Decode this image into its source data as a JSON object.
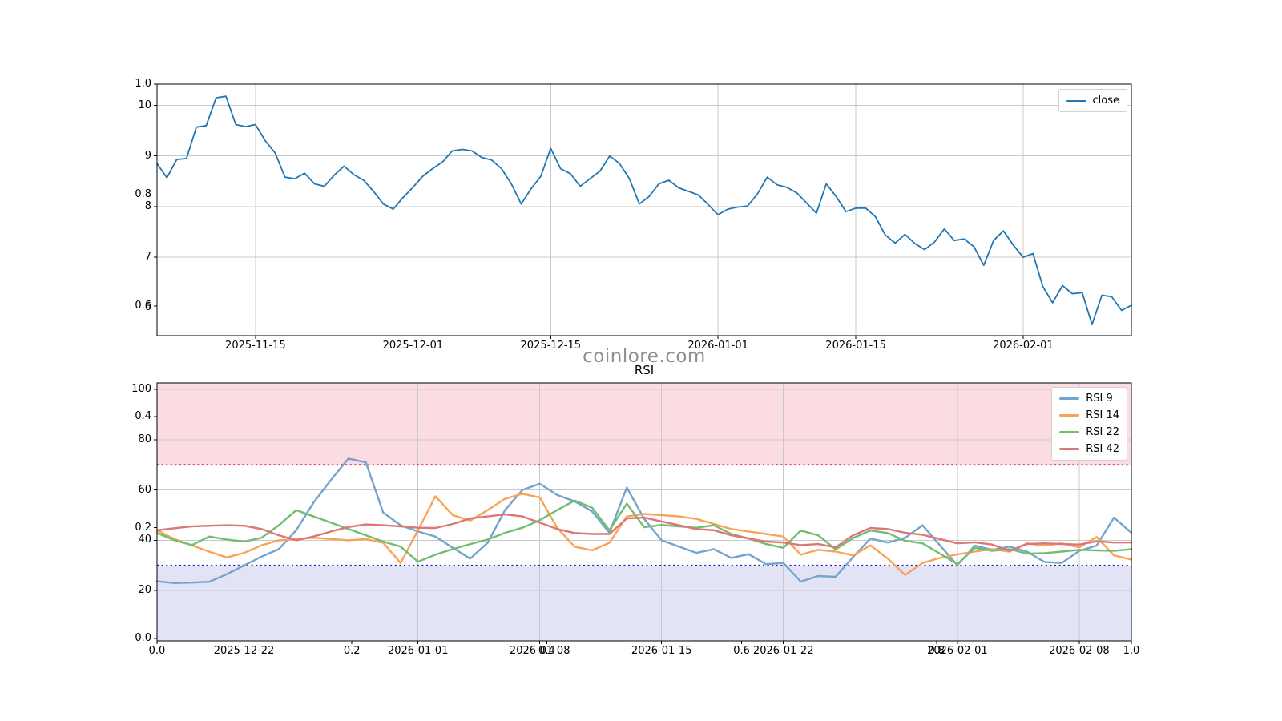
{
  "watermark": {
    "text": "coinlore.com"
  },
  "colors": {
    "grid": "#c9c9c9",
    "spine": "#000000",
    "close_line": "#1f77b4",
    "rsi9_line": "#74a4cd",
    "rsi14_line": "#f9a357",
    "rsi22_line": "#72bd72",
    "rsi42_line": "#dc7678",
    "overbought_band": "#fbdce2",
    "oversold_band": "#e3e3f6",
    "overbought_dotted": "#c81e3c",
    "oversold_dotted": "#1515b5",
    "watermark_text": "#8f8f8f"
  },
  "overlay_axis": {
    "y_labels": [
      "1.0",
      "0.8",
      "0.6",
      "0.4",
      "0.2",
      "0.0"
    ],
    "x_labels": [
      "0.0",
      "0.2",
      "0.4",
      "0.6",
      "0.8",
      "1.0"
    ]
  },
  "chart_data": [
    {
      "type": "line",
      "name": "price-panel",
      "title": "",
      "x_start_date": "2025-11-05",
      "x_end_date": "2026-02-12",
      "x_freq": "daily",
      "ylim": [
        5.45,
        10.42
      ],
      "grid": true,
      "legend_position": "upper right",
      "yticks": [
        {
          "label": "10",
          "value": 10
        },
        {
          "label": "9",
          "value": 9
        },
        {
          "label": "8",
          "value": 8
        },
        {
          "label": "7",
          "value": 7
        },
        {
          "label": "6",
          "value": 6
        }
      ],
      "xticks": [
        {
          "label": "2025-11-15",
          "index": 10
        },
        {
          "label": "2025-12-01",
          "index": 26
        },
        {
          "label": "2025-12-15",
          "index": 40
        },
        {
          "label": "2026-01-01",
          "index": 57
        },
        {
          "label": "2026-01-15",
          "index": 71
        },
        {
          "label": "2026-02-01",
          "index": 88
        }
      ],
      "series": [
        {
          "name": "close",
          "color": "#1f77b4",
          "width": 1.8,
          "values": [
            8.85,
            8.57,
            8.93,
            8.95,
            9.57,
            9.6,
            10.15,
            10.18,
            9.62,
            9.58,
            9.62,
            9.3,
            9.06,
            8.58,
            8.55,
            8.66,
            8.45,
            8.4,
            8.62,
            8.8,
            8.63,
            8.52,
            8.3,
            8.05,
            7.95,
            8.18,
            8.38,
            8.6,
            8.75,
            8.88,
            9.1,
            9.13,
            9.1,
            8.97,
            8.92,
            8.75,
            8.45,
            8.05,
            8.35,
            8.6,
            9.15,
            8.75,
            8.65,
            8.4,
            8.55,
            8.7,
            9.0,
            8.85,
            8.55,
            8.05,
            8.2,
            8.45,
            8.52,
            8.37,
            8.3,
            8.23,
            8.04,
            7.84,
            7.95,
            7.99,
            8.01,
            8.25,
            8.58,
            8.43,
            8.38,
            8.27,
            8.07,
            7.87,
            8.45,
            8.2,
            7.9,
            7.97,
            7.97,
            7.8,
            7.44,
            7.28,
            7.45,
            7.27,
            7.15,
            7.3,
            7.56,
            7.33,
            7.36,
            7.21,
            6.84,
            7.33,
            7.52,
            7.24,
            7.0,
            7.07,
            6.42,
            6.1,
            6.44,
            6.28,
            6.3,
            5.67,
            6.25,
            6.22,
            5.95,
            6.05
          ]
        }
      ]
    },
    {
      "type": "line",
      "name": "rsi-panel",
      "title": "RSI",
      "x_start_date": "2025-12-17",
      "x_end_date": "2026-02-11",
      "x_freq": "daily",
      "ylim": [
        0,
        100
      ],
      "grid": true,
      "legend_position": "upper right",
      "yticks": [
        {
          "label": "100",
          "value": 100
        },
        {
          "label": "80",
          "value": 80
        },
        {
          "label": "60",
          "value": 60
        },
        {
          "label": "40",
          "value": 40
        },
        {
          "label": "20",
          "value": 20
        }
      ],
      "xticks": [
        {
          "label": "2025-12-22",
          "index": 5
        },
        {
          "label": "2026-01-01",
          "index": 15
        },
        {
          "label": "2026-01-08",
          "index": 22
        },
        {
          "label": "2026-01-15",
          "index": 29
        },
        {
          "label": "2026-01-22",
          "index": 36
        },
        {
          "label": "2026-02-01",
          "index": 46
        },
        {
          "label": "2026-02-08",
          "index": 53
        }
      ],
      "bands": [
        {
          "from": 70,
          "to": 100,
          "color": "#fbdce2"
        },
        {
          "from": 0,
          "to": 30,
          "color": "#e3e3f6"
        }
      ],
      "hlines": [
        {
          "value": 70,
          "color": "#c81e3c",
          "style": "dotted"
        },
        {
          "value": 30,
          "color": "#1515b5",
          "style": "dotted"
        }
      ],
      "series": [
        {
          "name": "RSI 9",
          "color": "#74a4cd",
          "width": 2.4,
          "values": [
            23.7,
            23.0,
            23.2,
            23.5,
            26.5,
            30.0,
            33.5,
            36.5,
            44.0,
            55.0,
            64.0,
            72.5,
            71.0,
            51.0,
            46.0,
            43.5,
            41.5,
            37.0,
            32.7,
            39.0,
            52.0,
            60.0,
            62.5,
            58.0,
            55.5,
            51.5,
            43.0,
            61.0,
            48.5,
            40.0,
            37.5,
            35.0,
            36.5,
            33.0,
            34.5,
            30.5,
            31.0,
            23.6,
            25.8,
            25.5,
            33.3,
            40.7,
            39.1,
            41.0,
            46.0,
            38.0,
            30.1,
            37.9,
            36.2,
            37.5,
            35.5,
            31.4,
            31.0,
            35.8,
            37.9,
            49.0,
            43.0
          ]
        },
        {
          "name": "RSI 14",
          "color": "#f9a357",
          "width": 2.4,
          "values": [
            44.0,
            40.5,
            38.0,
            35.5,
            33.2,
            35.0,
            38.0,
            40.0,
            40.5,
            41.0,
            40.5,
            40.0,
            40.5,
            39.0,
            31.0,
            44.0,
            57.5,
            50.0,
            47.8,
            52.0,
            56.5,
            58.5,
            57.0,
            45.0,
            37.5,
            36.0,
            39.0,
            49.5,
            50.5,
            50.0,
            49.5,
            48.5,
            46.5,
            44.5,
            43.5,
            42.5,
            41.5,
            34.3,
            36.2,
            35.5,
            34.0,
            38.0,
            32.7,
            26.2,
            31.0,
            33.0,
            34.4,
            35.5,
            36.5,
            35.5,
            38.8,
            37.9,
            38.8,
            37.2,
            41.3,
            34.0,
            32.3
          ]
        },
        {
          "name": "RSI 22",
          "color": "#72bd72",
          "width": 2.4,
          "values": [
            42.9,
            40.0,
            38.1,
            41.5,
            40.3,
            39.5,
            41.0,
            46.0,
            52.0,
            49.5,
            47.0,
            44.5,
            42.0,
            39.5,
            37.5,
            31.5,
            34.3,
            36.5,
            38.5,
            40.3,
            43.0,
            45.0,
            48.0,
            52.0,
            55.8,
            53.0,
            44.0,
            54.6,
            45.2,
            46.1,
            45.5,
            45.0,
            46.0,
            42.5,
            40.7,
            38.5,
            37.0,
            43.9,
            42.0,
            36.4,
            40.9,
            43.9,
            42.9,
            39.8,
            38.8,
            34.7,
            30.5,
            37.0,
            35.8,
            36.5,
            34.7,
            34.9,
            35.5,
            36.2,
            36.0,
            35.8,
            36.5
          ]
        },
        {
          "name": "RSI 42",
          "color": "#dc7678",
          "width": 2.4,
          "values": [
            44.0,
            44.8,
            45.5,
            45.8,
            46.0,
            45.8,
            44.5,
            42.0,
            40.0,
            41.5,
            43.5,
            45.3,
            46.3,
            46.0,
            45.5,
            45.0,
            44.9,
            46.5,
            48.7,
            49.5,
            50.3,
            49.5,
            47.0,
            44.5,
            42.9,
            42.5,
            42.5,
            48.7,
            49.0,
            47.5,
            46.0,
            44.5,
            44.0,
            42.0,
            40.7,
            39.5,
            39.1,
            38.1,
            38.5,
            37.2,
            42.0,
            44.9,
            44.5,
            43.0,
            42.2,
            40.5,
            38.8,
            39.2,
            38.3,
            35.8,
            38.5,
            38.8,
            38.5,
            38.3,
            39.6,
            39.1,
            39.1
          ]
        }
      ]
    }
  ]
}
